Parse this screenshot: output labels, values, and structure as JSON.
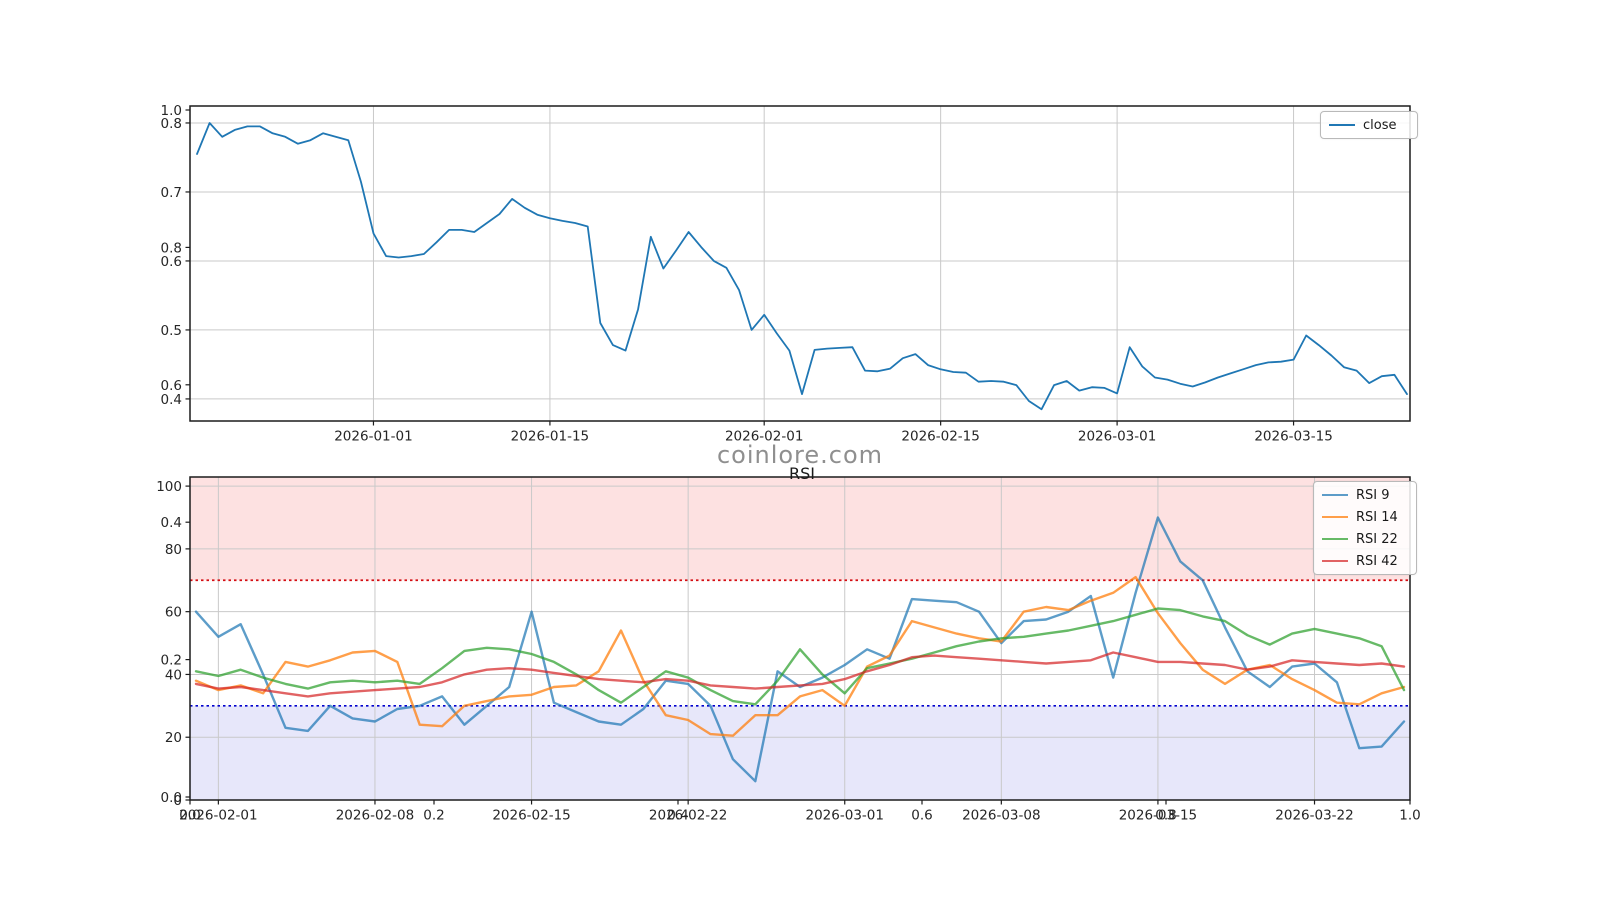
{
  "watermark": "coinlore.com",
  "rsi_title": "RSI",
  "colors": {
    "close_line": "#1f77b4",
    "rsi9_line": "#1f77b4",
    "rsi14_line": "#ff7f0e",
    "rsi22_line": "#2ca02c",
    "rsi42_line": "#d62728",
    "overbought_band": "rgba(240,70,70,0.16)",
    "oversold_band": "rgba(105,105,225,0.16)",
    "overbought_line": "#d40d12",
    "oversold_line": "#0000cd",
    "grid": "#c9c9c9",
    "spine": "#1c1c1c",
    "tick_text": "#262626"
  },
  "overlay_axis": {
    "yticks": [
      "1.0",
      "0.8",
      "0.6",
      "0.4",
      "0.2",
      "0.0"
    ],
    "xticks": [
      "0.0",
      "0.2",
      "0.4",
      "0.6",
      "0.8",
      "1.0"
    ]
  },
  "chart_data": [
    {
      "type": "line",
      "title": "",
      "x_start": "2025-12-18",
      "x_end": "2026-03-24",
      "x_freq": "daily",
      "ylim": [
        0.368,
        0.8246
      ],
      "grid": true,
      "legend": {
        "position": "upper right",
        "entries": [
          "close"
        ]
      },
      "yticks": [
        {
          "v": 0.4,
          "label": "0.4"
        },
        {
          "v": 0.5,
          "label": "0.5"
        },
        {
          "v": 0.6,
          "label": "0.6"
        },
        {
          "v": 0.7,
          "label": "0.7"
        },
        {
          "v": 0.8,
          "label": "0.8"
        }
      ],
      "xticks": [
        {
          "index": 14,
          "label": "2026-01-01"
        },
        {
          "index": 28,
          "label": "2026-01-15"
        },
        {
          "index": 45,
          "label": "2026-02-01"
        },
        {
          "index": 59,
          "label": "2026-02-15"
        },
        {
          "index": 73,
          "label": "2026-03-01"
        },
        {
          "index": 87,
          "label": "2026-03-15"
        }
      ],
      "series": [
        {
          "name": "close",
          "color": "#1f77b4",
          "opacity": 1,
          "width": 1.8,
          "values": [
            0.755,
            0.8,
            0.78,
            0.79,
            0.795,
            0.795,
            0.785,
            0.78,
            0.77,
            0.775,
            0.785,
            0.78,
            0.775,
            0.715,
            0.64,
            0.607,
            0.605,
            0.607,
            0.61,
            0.627,
            0.645,
            0.645,
            0.642,
            0.655,
            0.668,
            0.69,
            0.677,
            0.667,
            0.662,
            0.658,
            0.655,
            0.65,
            0.51,
            0.478,
            0.47,
            0.53,
            0.635,
            0.589,
            0.615,
            0.642,
            0.62,
            0.6,
            0.59,
            0.558,
            0.5,
            0.522,
            0.495,
            0.47,
            0.407,
            0.471,
            0.473,
            0.474,
            0.475,
            0.441,
            0.44,
            0.444,
            0.459,
            0.465,
            0.449,
            0.443,
            0.439,
            0.438,
            0.425,
            0.426,
            0.425,
            0.42,
            0.397,
            0.385,
            0.42,
            0.426,
            0.412,
            0.417,
            0.416,
            0.408,
            0.475,
            0.447,
            0.431,
            0.428,
            0.422,
            0.418,
            0.424,
            0.431,
            0.437,
            0.443,
            0.449,
            0.453,
            0.454,
            0.457,
            0.492,
            0.478,
            0.463,
            0.446,
            0.441,
            0.423,
            0.433,
            0.435,
            0.407
          ]
        }
      ]
    },
    {
      "type": "line",
      "title": "RSI",
      "x_start": "2026-01-31",
      "x_end": "2026-03-26",
      "x_freq": "daily",
      "ylim": [
        0,
        102.9
      ],
      "grid": true,
      "legend": {
        "position": "upper right",
        "entries": [
          "RSI 9",
          "RSI 14",
          "RSI 22",
          "RSI 42"
        ]
      },
      "bands": [
        {
          "from": 70,
          "to": 102.9,
          "color": "rgba(240,70,70,0.16)",
          "name": "overbought-band"
        },
        {
          "from": 0,
          "to": 30,
          "color": "rgba(105,105,225,0.16)",
          "name": "oversold-band"
        }
      ],
      "hlines": [
        {
          "y": 70,
          "color": "#d40d12",
          "style": "dotted",
          "name": "overbought-threshold"
        },
        {
          "y": 30,
          "color": "#0000cd",
          "style": "dotted",
          "name": "oversold-threshold"
        }
      ],
      "yticks": [
        {
          "v": 0,
          "label": "0"
        },
        {
          "v": 20,
          "label": "20"
        },
        {
          "v": 40,
          "label": "40"
        },
        {
          "v": 60,
          "label": "60"
        },
        {
          "v": 80,
          "label": "80"
        },
        {
          "v": 100,
          "label": "100"
        }
      ],
      "xticks": [
        {
          "index": 1,
          "label": "2026-02-01"
        },
        {
          "index": 8,
          "label": "2026-02-08"
        },
        {
          "index": 15,
          "label": "2026-02-15"
        },
        {
          "index": 22,
          "label": "2026-02-22"
        },
        {
          "index": 29,
          "label": "2026-03-01"
        },
        {
          "index": 36,
          "label": "2026-03-08"
        },
        {
          "index": 43,
          "label": "2026-03-15"
        },
        {
          "index": 50,
          "label": "2026-03-22"
        }
      ],
      "series": [
        {
          "name": "RSI 9",
          "color": "#1f77b4",
          "opacity": 0.72,
          "width": 2.4,
          "values": [
            60,
            52,
            56,
            40,
            23,
            22,
            30,
            26,
            25,
            29,
            30,
            33,
            24,
            30,
            36,
            60,
            31,
            28,
            25,
            24,
            29,
            38,
            37,
            30,
            13,
            6,
            41,
            36,
            39,
            43,
            48,
            45,
            64,
            63.5,
            63,
            60,
            50,
            57,
            57.5,
            60,
            65,
            39,
            66,
            90,
            76,
            70,
            55,
            41,
            36,
            42.5,
            43.5,
            37.5,
            16.5,
            17,
            25
          ]
        },
        {
          "name": "RSI 14",
          "color": "#ff7f0e",
          "opacity": 0.75,
          "width": 2.4,
          "values": [
            38,
            35,
            36.5,
            34,
            44,
            42.5,
            44.5,
            47,
            47.5,
            44,
            24,
            23.5,
            30,
            31.5,
            33,
            33.5,
            36,
            36.5,
            41,
            54,
            38,
            27,
            25.5,
            21,
            20.5,
            27,
            27,
            33,
            35,
            30,
            42.5,
            46,
            57,
            55,
            53,
            51.5,
            50.5,
            60,
            61.5,
            60.5,
            63.5,
            66,
            71,
            59.5,
            50,
            41.5,
            37,
            41.5,
            43,
            38.5,
            35,
            31,
            30.5,
            34,
            36
          ]
        },
        {
          "name": "RSI 22",
          "color": "#2ca02c",
          "opacity": 0.72,
          "width": 2.4,
          "values": [
            41,
            39.5,
            41.5,
            39,
            37,
            35.5,
            37.5,
            38,
            37.5,
            38,
            37,
            42,
            47.5,
            48.5,
            48,
            46.5,
            44,
            40,
            35,
            31,
            36,
            41,
            39,
            35,
            31.5,
            30.5,
            38,
            48,
            40,
            34,
            42,
            43.5,
            45,
            47,
            49,
            50.5,
            51.5,
            52,
            53,
            54,
            55.5,
            57,
            59,
            61,
            60.5,
            58.5,
            57,
            52.5,
            49.5,
            53,
            54.5,
            53,
            51.5,
            49,
            35
          ]
        },
        {
          "name": "RSI 42",
          "color": "#d62728",
          "opacity": 0.72,
          "width": 2.4,
          "values": [
            37,
            35.5,
            36,
            35,
            34,
            33,
            34,
            34.5,
            35,
            35.5,
            36,
            37.5,
            40,
            41.5,
            42,
            41.5,
            40.5,
            39.5,
            38.5,
            38,
            37.5,
            38.5,
            38,
            36.5,
            36,
            35.5,
            36,
            36.5,
            37,
            38.5,
            41,
            43,
            45.5,
            46,
            45.5,
            45,
            44.5,
            44,
            43.5,
            44,
            44.5,
            47,
            45.5,
            44,
            44,
            43.5,
            43,
            41.5,
            42.5,
            44.5,
            44,
            43.5,
            43,
            43.5,
            42.5
          ]
        }
      ]
    }
  ]
}
